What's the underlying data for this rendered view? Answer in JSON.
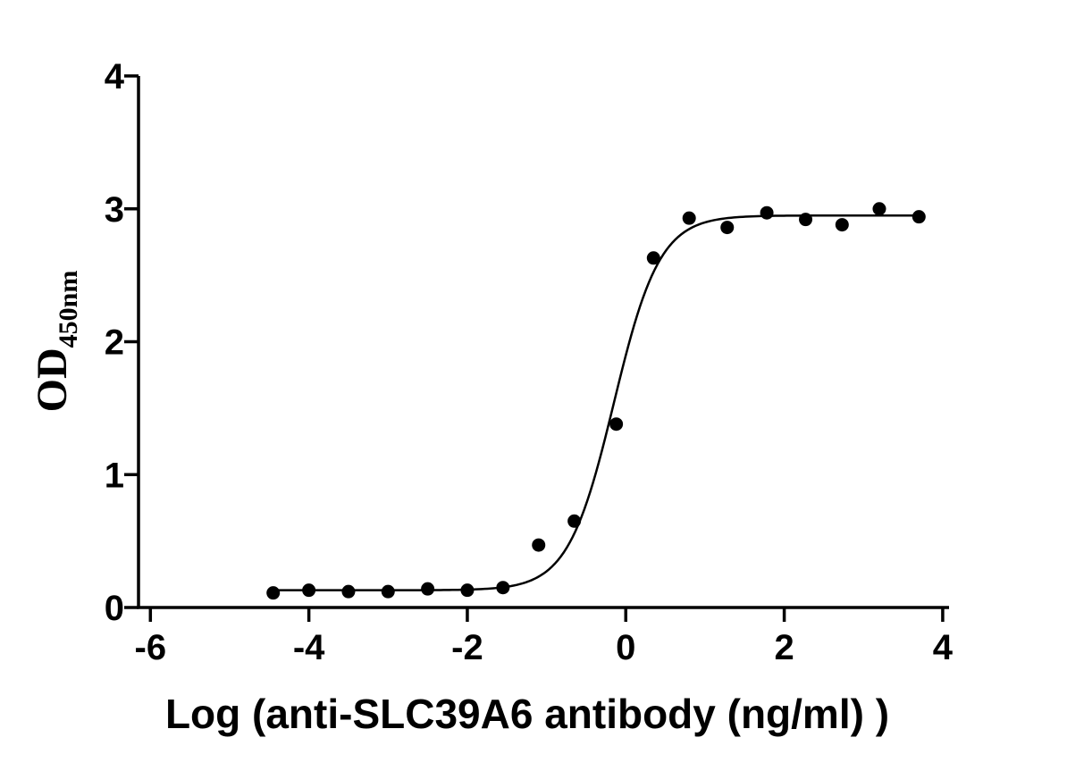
{
  "chart_data": {
    "type": "scatter",
    "title": "",
    "xlabel": "Log (anti-SLC39A6 antibody (ng/ml) )",
    "ylabel_main": "OD",
    "ylabel_sub": "450nm",
    "xlim": [
      -6.15,
      4.08
    ],
    "ylim": [
      0,
      4
    ],
    "xticks": [
      -6,
      -4,
      -2,
      0,
      2,
      4
    ],
    "yticks": [
      0,
      1,
      2,
      3,
      4
    ],
    "grid": false,
    "legend": null,
    "marker_color": "#000000",
    "curve_color": "#000000",
    "points": [
      {
        "x": -4.45,
        "y": 0.11
      },
      {
        "x": -4.0,
        "y": 0.13
      },
      {
        "x": -3.5,
        "y": 0.12
      },
      {
        "x": -3.0,
        "y": 0.12
      },
      {
        "x": -2.5,
        "y": 0.14
      },
      {
        "x": -2.0,
        "y": 0.13
      },
      {
        "x": -1.55,
        "y": 0.15
      },
      {
        "x": -1.1,
        "y": 0.47
      },
      {
        "x": -0.65,
        "y": 0.65
      },
      {
        "x": -0.12,
        "y": 1.38
      },
      {
        "x": 0.35,
        "y": 2.63
      },
      {
        "x": 0.8,
        "y": 2.93
      },
      {
        "x": 1.28,
        "y": 2.86
      },
      {
        "x": 1.78,
        "y": 2.97
      },
      {
        "x": 2.27,
        "y": 2.92
      },
      {
        "x": 2.73,
        "y": 2.88
      },
      {
        "x": 3.2,
        "y": 3.0
      },
      {
        "x": 3.7,
        "y": 2.94
      }
    ],
    "fit_curve": {
      "model": "4PL",
      "bottom": 0.13,
      "top": 2.95,
      "logEC50": -0.15,
      "hillslope": 1.5,
      "x_start": -4.45,
      "x_end": 3.7
    }
  }
}
